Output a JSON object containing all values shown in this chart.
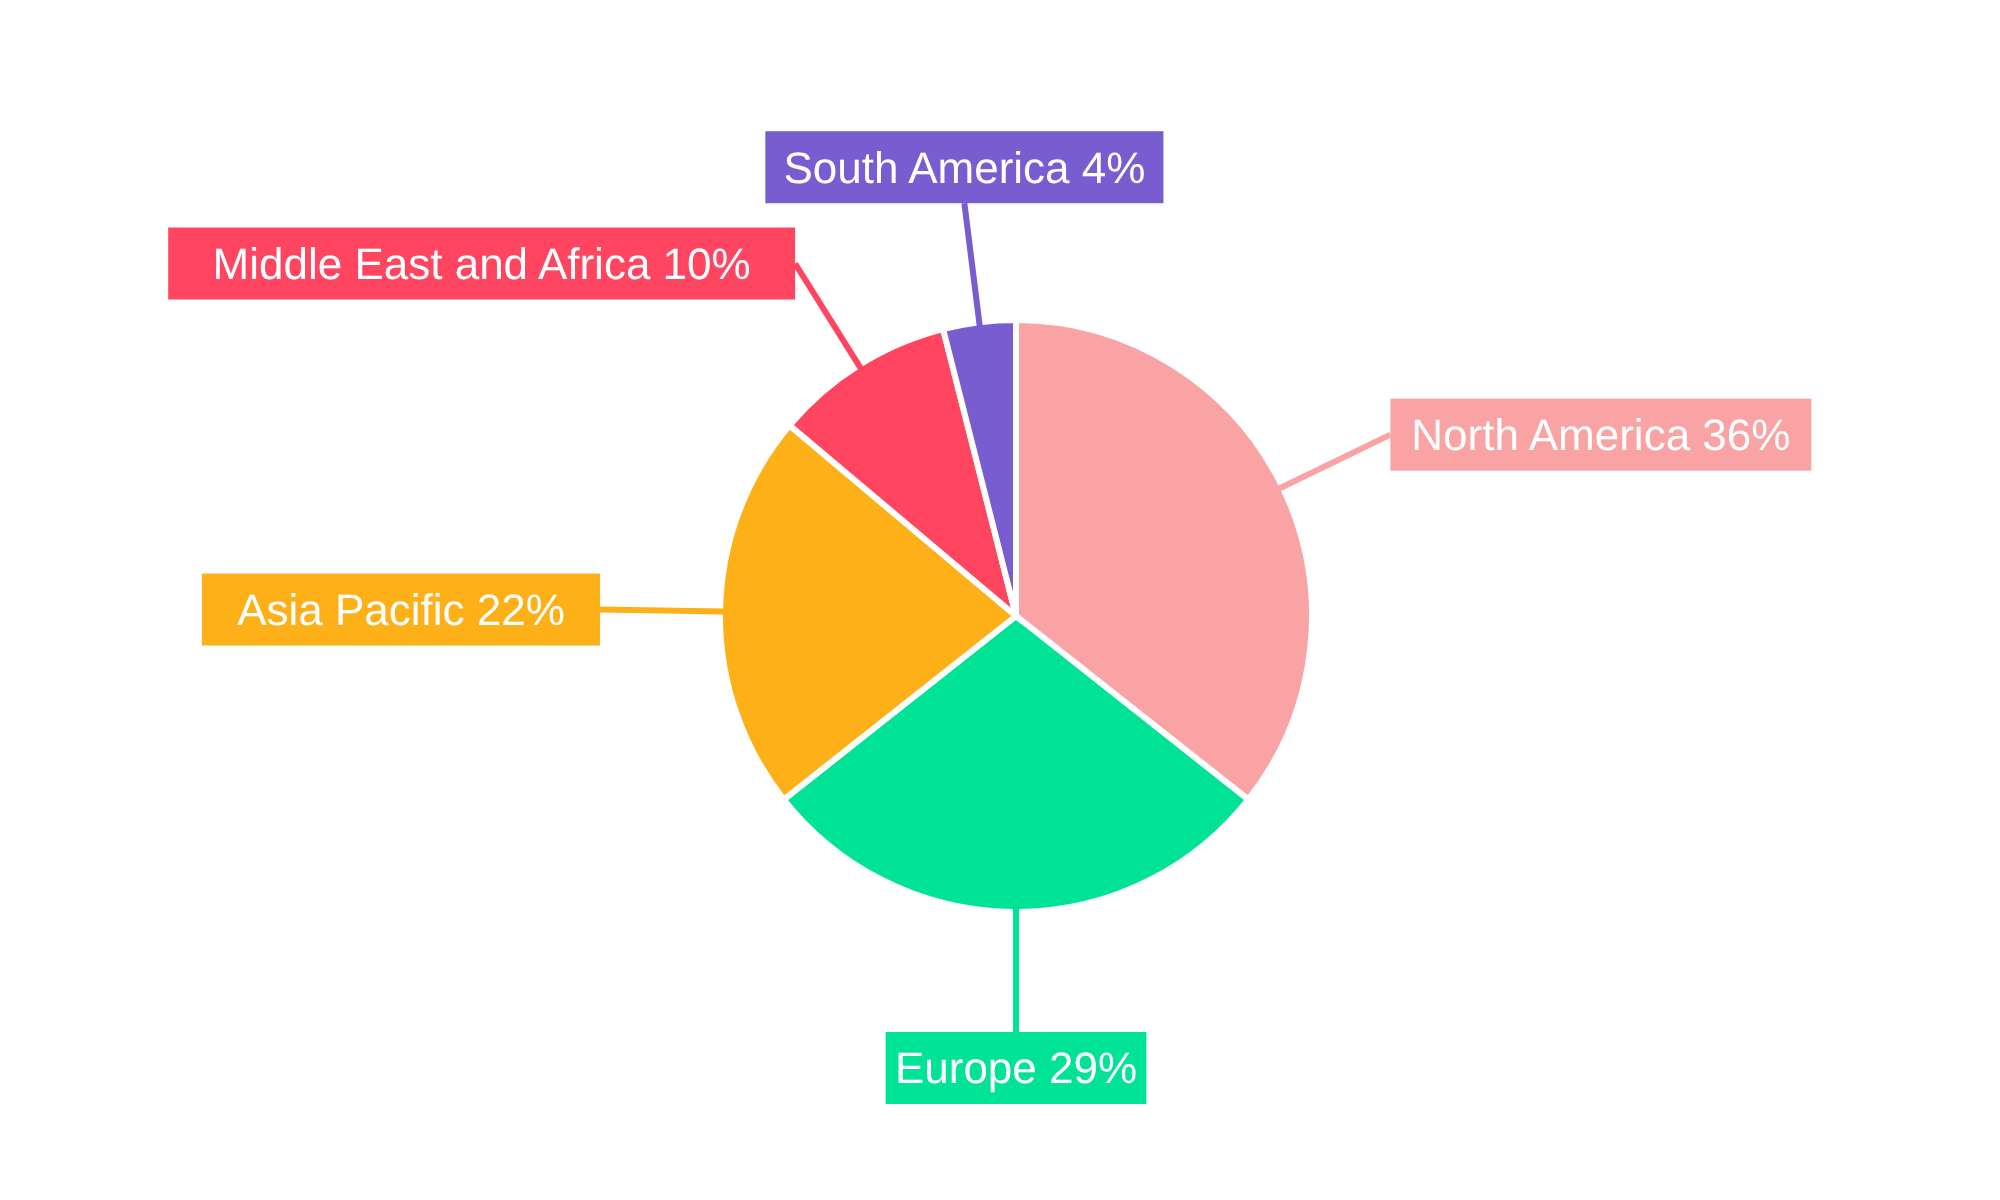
{
  "chart_data": {
    "type": "pie",
    "categories": [
      "North America",
      "Europe",
      "Asia Pacific",
      "Middle East and Africa",
      "South America"
    ],
    "values": [
      36,
      29,
      22,
      10,
      4
    ],
    "value_labels": [
      "36%",
      "29%",
      "22%",
      "10%",
      "4%"
    ],
    "colors": [
      "#f9a3a4",
      "#00e396",
      "#feb019",
      "#ff4560",
      "#775dd0"
    ]
  }
}
